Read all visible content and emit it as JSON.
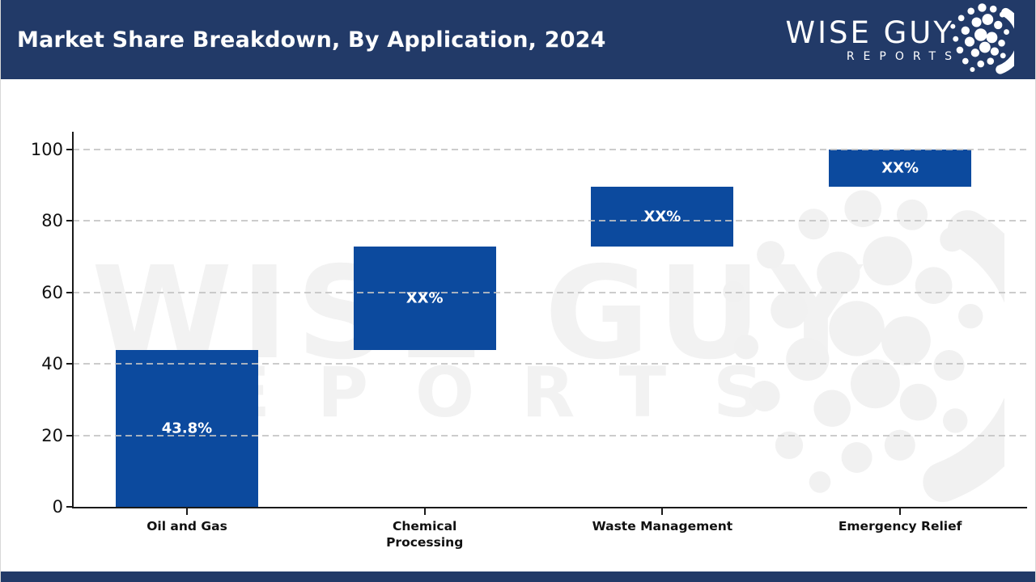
{
  "header": {
    "title": "Market Share Breakdown, By Application, 2024",
    "logo": {
      "wordmark": "WISE GUY",
      "subtext": "REPORTS"
    }
  },
  "watermark": {
    "line1": "WISE GUY",
    "line2": "REPORTS"
  },
  "colors": {
    "header_bg": "#223a68",
    "footer_bg": "#223a68",
    "bar": "#0c4a9e",
    "grid": "#c9c9c9",
    "axis": "#1a1a1a",
    "title_text": "#ffffff",
    "tick_text": "#111111"
  },
  "chart_data": {
    "type": "bar",
    "subtype": "floating-waterfall",
    "title": "Market Share Breakdown, By Application, 2024",
    "categories": [
      "Oil and Gas",
      "Chemical Processing",
      "Waste Management",
      "Emergency Relief"
    ],
    "categories_display": [
      "Oil and Gas",
      "Chemical\nProcessing",
      "Waste Management",
      "Emergency Relief"
    ],
    "segments": [
      {
        "category": "Oil and Gas",
        "start": 0,
        "end": 43.8,
        "label": "43.8%"
      },
      {
        "category": "Chemical Processing",
        "start": 43.8,
        "end": 72.9,
        "label": "XX%"
      },
      {
        "category": "Waste Management",
        "start": 72.9,
        "end": 89.5,
        "label": "XX%"
      },
      {
        "category": "Emergency Relief",
        "start": 89.5,
        "end": 100,
        "label": "XX%"
      }
    ],
    "xlabel": "",
    "ylabel": "",
    "ylim": [
      0,
      100
    ],
    "yticks": [
      0,
      20,
      40,
      60,
      80,
      100
    ],
    "grid": "dashed-horizontal",
    "legend": null,
    "bar_color": "#0c4a9e"
  }
}
